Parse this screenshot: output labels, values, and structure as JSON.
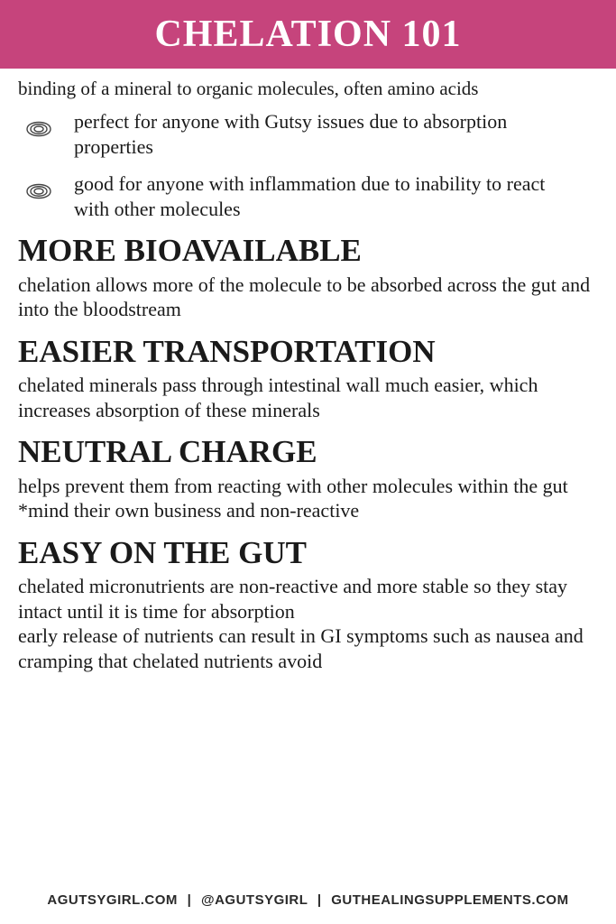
{
  "colors": {
    "banner_bg": "#c6447c",
    "banner_fg": "#ffffff",
    "page_bg": "#ffffff",
    "text": "#1a1a1a",
    "footer_text": "#2a2a2a",
    "scribble": "#444444"
  },
  "typography": {
    "title_fontsize": 42,
    "intro_fontsize": 21,
    "heading_fontsize": 35,
    "body_fontsize": 22,
    "footer_fontsize": 15
  },
  "title": "CHELATION 101",
  "intro": "binding of a mineral to organic molecules, often amino acids",
  "bullets": [
    "perfect for anyone with Gutsy issues due to absorption properties",
    "good for anyone with inflammation due to inability to react with other molecules"
  ],
  "sections": [
    {
      "heading": "MORE BIOAVAILABLE",
      "body": "chelation allows more of the molecule to be absorbed across the gut and into the bloodstream"
    },
    {
      "heading": "EASIER TRANSPORTATION",
      "body": "chelated minerals pass through intestinal wall much easier, which increases absorption of these minerals"
    },
    {
      "heading": "NEUTRAL CHARGE",
      "body": "helps prevent them from reacting with other molecules within the gut\n*mind their own business and non-reactive"
    },
    {
      "heading": "EASY ON THE GUT",
      "body": "chelated micronutrients are non-reactive and more stable so they stay intact until it is time for absorption\nearly release of nutrients can result in GI symptoms such as nausea and cramping that chelated nutrients avoid"
    }
  ],
  "footer": {
    "part1": "AGUTSYGIRL.COM",
    "part2": "@AGUTSYGIRL",
    "part3": "GUTHEALINGSUPPLEMENTS.COM",
    "separator": "|"
  }
}
